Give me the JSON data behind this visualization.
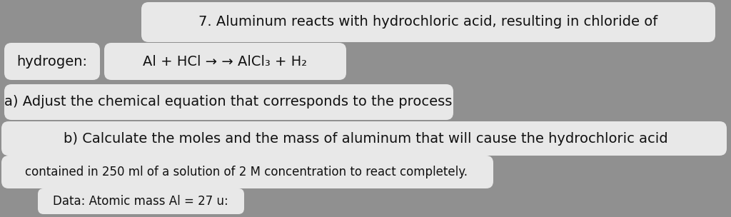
{
  "background_color": "#909090",
  "box_color": "#e8e8e8",
  "text_color": "#111111",
  "line1_text": "7. Aluminum reacts with hydrochloric acid, resulting in chloride of",
  "label_hydrogen": "hydrogen:",
  "equation_text": "Al + HCl → → AlCl₃ + H₂",
  "line_a_text": "a) Adjust the chemical equation that corresponds to the process",
  "line_b1_text": "b) Calculate the moles and the mass of aluminum that will cause the hydrochloric acid",
  "line_b2_text": "contained in 250 ml of a solution of 2 M concentration to react completely.",
  "line_data_text": "Data: Atomic mass Al = 27 u:",
  "fontsize_main": 14,
  "fontsize_small": 12
}
